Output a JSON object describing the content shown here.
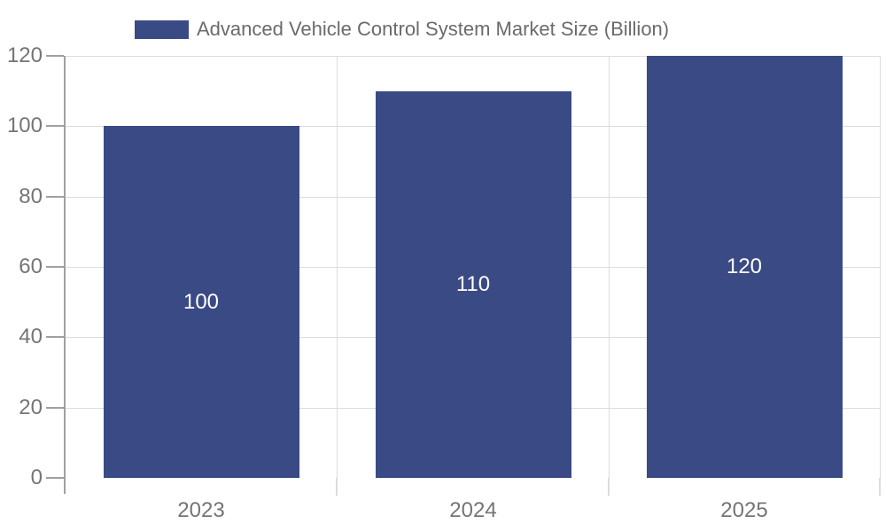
{
  "chart_data": {
    "type": "bar",
    "title": "Advanced Vehicle Control System Market Size (Billion)",
    "categories": [
      "2023",
      "2024",
      "2025"
    ],
    "values": [
      100,
      110,
      120
    ],
    "value_labels": [
      "100",
      "110",
      "120"
    ],
    "series": [
      {
        "name": "Advanced Vehicle Control System Market Size (Billion)",
        "values": [
          100,
          110,
          120
        ]
      }
    ],
    "xlabel": "",
    "ylabel": "",
    "ylim": [
      0,
      120
    ],
    "yticks": [
      0,
      20,
      40,
      60,
      80,
      100,
      120
    ],
    "ytick_labels": [
      "0",
      "20",
      "40",
      "60",
      "80",
      "100",
      "120"
    ],
    "grid": true,
    "legend_position": "top",
    "colors": {
      "bar": "#3a4a84",
      "value_label": "#ffffff",
      "axis_line": "#a0a0a0",
      "gridline": "#dcdcdc",
      "tick_label": "#757575",
      "legend_text": "#6b6b6b",
      "background": "#ffffff"
    }
  }
}
